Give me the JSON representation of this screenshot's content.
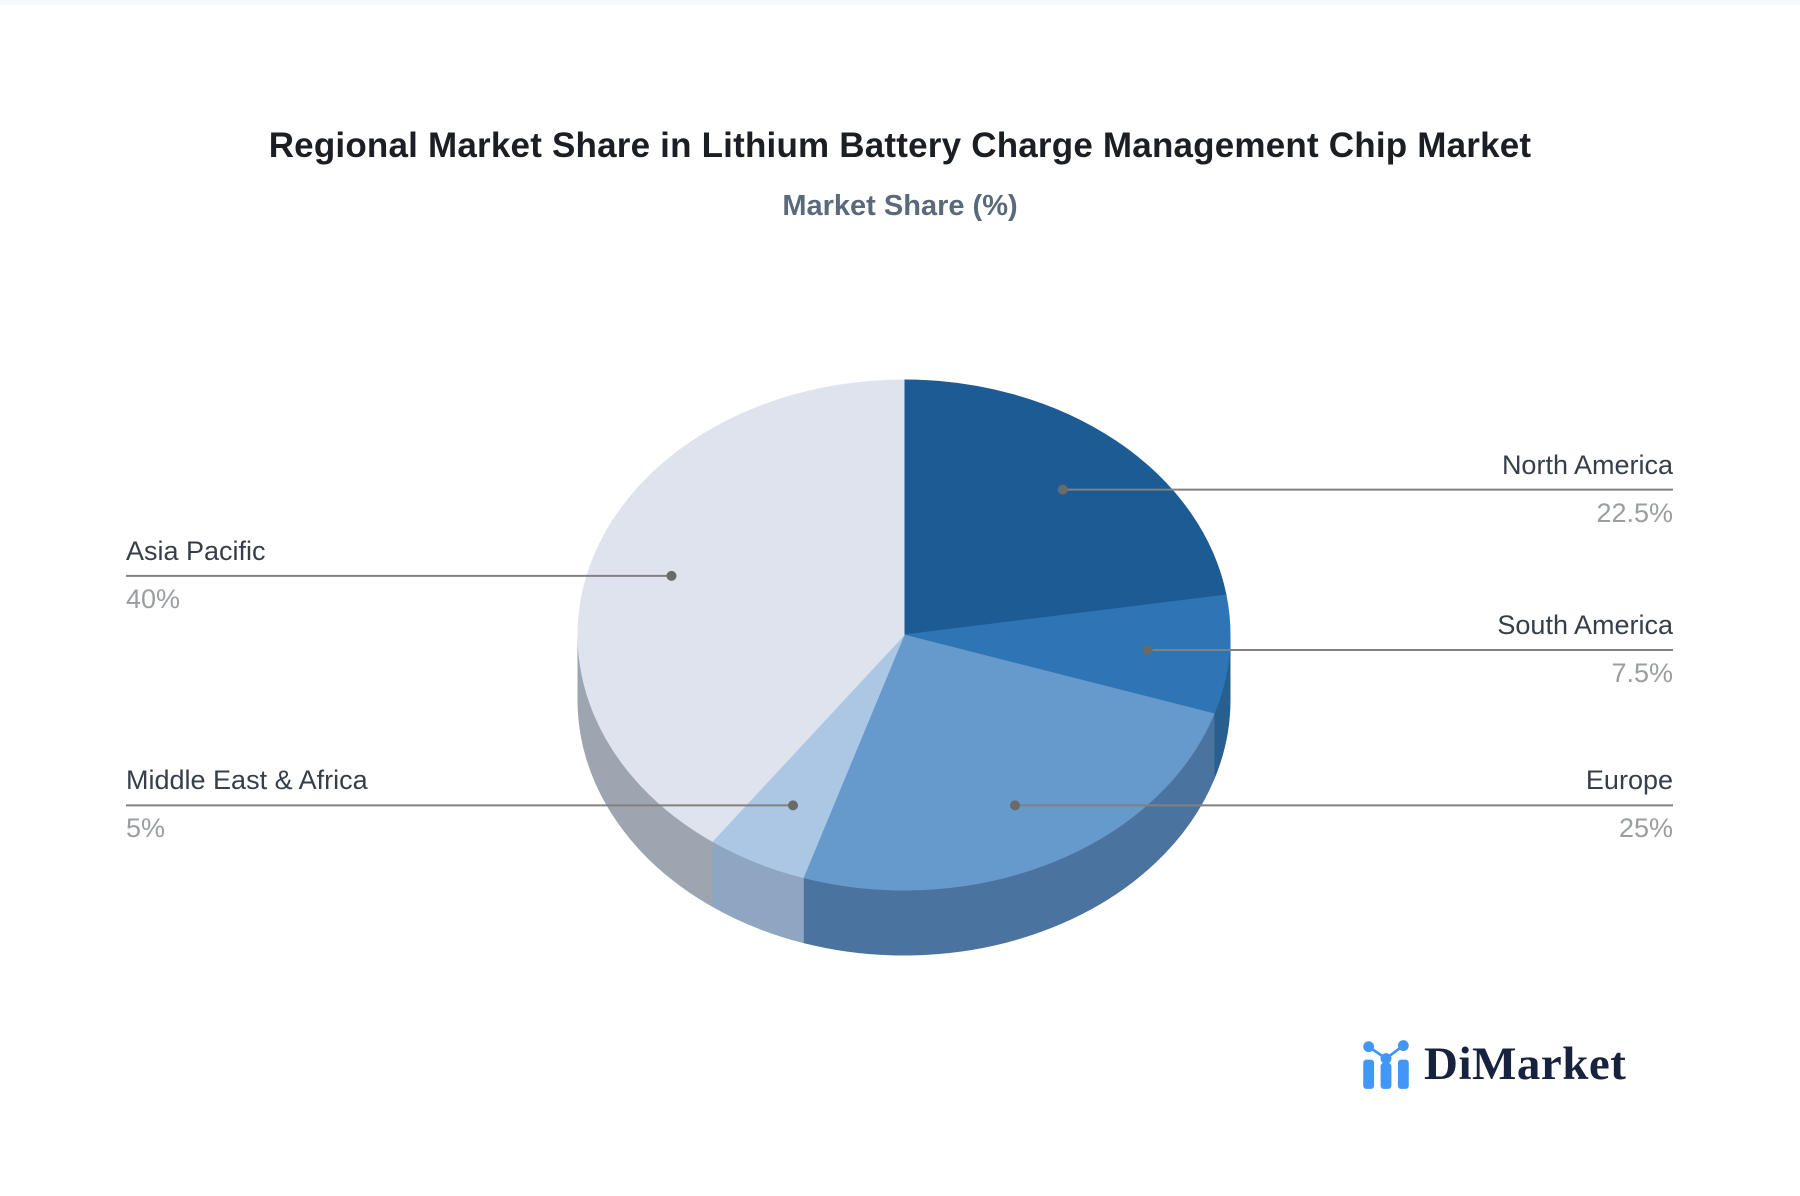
{
  "header": {
    "title": "Regional Market Share in Lithium Battery Charge Management Chip Market",
    "subtitle": "Market Share (%)"
  },
  "chart_data": {
    "type": "pie",
    "title": "Regional Market Share in Lithium Battery Charge Management Chip Market",
    "subtitle": "Market Share (%)",
    "unit": "%",
    "style": "3d-pie",
    "start_angle_deg": 0,
    "direction": "clockwise",
    "legend_position": "none",
    "labeling": "leader-lines-with-name-and-percent",
    "labels": [
      "North America",
      "South America",
      "Europe",
      "Middle East & Africa",
      "Asia Pacific"
    ],
    "values": [
      22.5,
      7.5,
      25,
      5,
      40
    ],
    "display_values": [
      "22.5%",
      "7.5%",
      "25%",
      "5%",
      "40%"
    ],
    "colors": [
      "#1d5b94",
      "#2e75b6",
      "#6699cc",
      "#abc7e3",
      "#dee3ed"
    ],
    "side_colors": [
      "#16497a",
      "#27608f",
      "#4b739f",
      "#8ea6c1",
      "#9ca5b0"
    ],
    "leader_line_color": "#818181",
    "leader_dot_color": "#6a6a6a"
  },
  "branding": {
    "logo_text": "DiMarket",
    "logo_icon": "bar-line-chart-icon",
    "logo_text_color": "#17233e",
    "logo_icon_color": "#4196f6"
  }
}
